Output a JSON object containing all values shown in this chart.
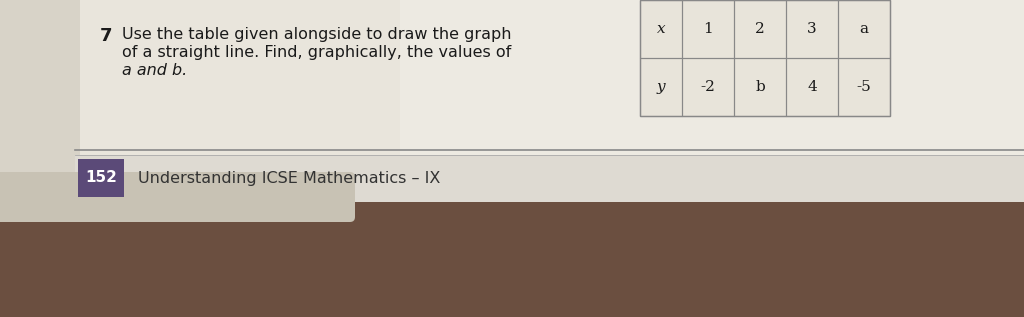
{
  "question_number": "7",
  "question_text_line1": "Use the table given alongside to draw the graph",
  "question_text_line2": "of a straight line. Find, graphically, the values of",
  "question_text_line3": "a and b.",
  "table_header_row": [
    "x",
    "1",
    "2",
    "3",
    "a"
  ],
  "table_data_row": [
    "y",
    "-2",
    "b",
    "4",
    "-5"
  ],
  "footer_number": "152",
  "footer_text": "Understanding ICSE Mathematics – IX",
  "bg_wood_top": "#8B6F5E",
  "bg_wood_bottom": "#6B4C3B",
  "page_bg": "#E8E2D8",
  "page_bg2": "#F0EBE0",
  "table_bg": "#E8E3DA",
  "table_border": "#999999",
  "footer_number_bg": "#5B4A78",
  "footer_number_color": "#FFFFFF",
  "footer_text_color": "#333333",
  "text_color": "#1A1A1A",
  "separator_color_dark": "#888888",
  "separator_color_light": "#BBBBBB",
  "footer_bg": "#D8D4CC"
}
